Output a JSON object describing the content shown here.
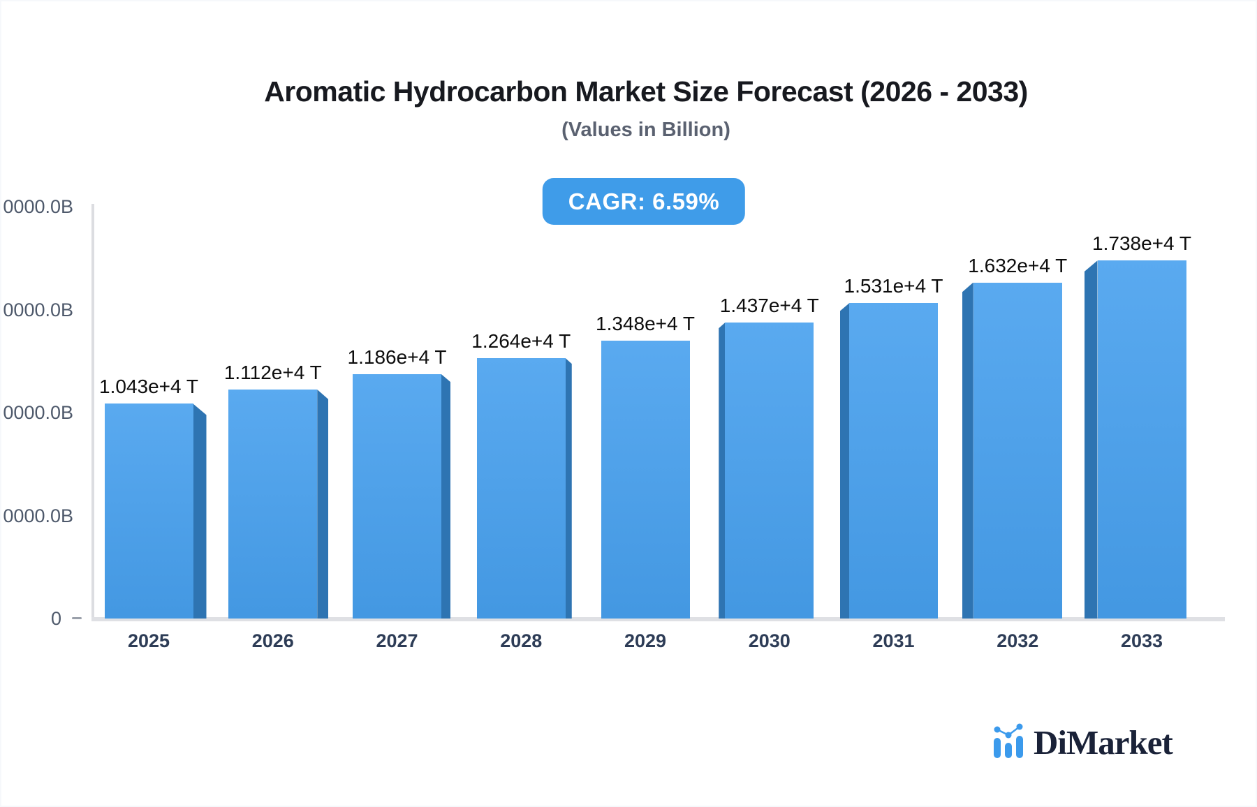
{
  "header": {
    "title": "Aromatic Hydrocarbon Market Size Forecast (2026 - 2033)",
    "subtitle": "(Values in Billion)",
    "cagr_label": "CAGR: 6.59%"
  },
  "brand": {
    "name": "DiMarket",
    "icon": "bar-chart-logo-icon",
    "icon_color": "#3b9aec",
    "name_color": "#1a2238"
  },
  "colors": {
    "accent_blue": "#3f9ce9",
    "bar_face": "#47a0ee",
    "bar_side": "#2e74b2",
    "axis_line": "#dcdde1",
    "x_label_text": "#2d3c56",
    "y_label_text": "#4e596b",
    "value_label_text": "#0d0d0d"
  },
  "chart_data": {
    "type": "bar",
    "title": "Aromatic Hydrocarbon Market Size Forecast (2026 - 2033)",
    "subtitle": "(Values in Billion)",
    "cagr_percent": 6.59,
    "categories": [
      "2025",
      "2026",
      "2027",
      "2028",
      "2029",
      "2030",
      "2031",
      "2032",
      "2033"
    ],
    "values": [
      10430,
      11120,
      11860,
      12640,
      13480,
      14370,
      15310,
      16320,
      17380
    ],
    "bar_labels": [
      "1.043e+4 T",
      "1.112e+4 T",
      "1.186e+4 T",
      "1.264e+4 T",
      "1.348e+4 T",
      "1.437e+4 T",
      "1.531e+4 T",
      "1.632e+4 T",
      "1.738e+4 T"
    ],
    "unit_suffix": "T",
    "xlabel": "",
    "ylabel": "",
    "grid": false,
    "legend": false,
    "y_axis": {
      "ylim": [
        0,
        20000
      ],
      "tick_step": 5000,
      "tick_labels_displayed": [
        "0000.0B",
        "0000.0B",
        "0000.0B",
        "0000.0B"
      ],
      "zero_label": "0"
    },
    "bar_color": "#47a0ee",
    "bar_side_color": "#2e74b2"
  }
}
